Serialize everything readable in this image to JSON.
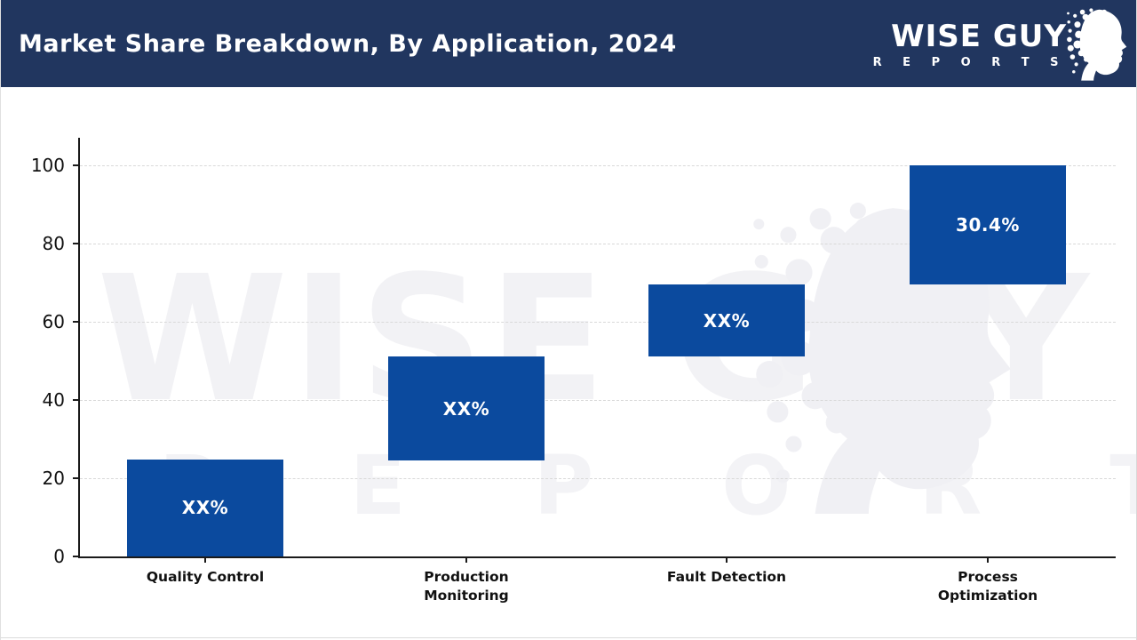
{
  "header": {
    "title": "Market Share Breakdown, By Application, 2024",
    "logo": {
      "line1": "WISE GUY",
      "line2": "R E P O R T S"
    }
  },
  "watermark": {
    "line1": "WISE GUY",
    "line2": "R E P O R T S"
  },
  "chart_data": {
    "type": "bar",
    "variant": "floating-waterfall",
    "title": "Market Share Breakdown, By Application, 2024",
    "categories": [
      "Quality Control",
      "Production\nMonitoring",
      "Fault Detection",
      "Process\nOptimization"
    ],
    "bars": [
      {
        "category": "Quality Control",
        "start": 0,
        "end": 24.8,
        "value_label": "XX%"
      },
      {
        "category": "Production Monitoring",
        "start": 24.5,
        "end": 51.1,
        "value_label": "XX%"
      },
      {
        "category": "Fault Detection",
        "start": 51.1,
        "end": 69.5,
        "value_label": "XX%"
      },
      {
        "category": "Process Optimization",
        "start": 69.5,
        "end": 99.9,
        "value_label": "30.4%"
      }
    ],
    "xlabel": "",
    "ylabel": "",
    "yticks": [
      0,
      20,
      40,
      60,
      80,
      100
    ],
    "ylim": [
      0,
      107
    ],
    "grid": "horizontal-dashed",
    "legend": "none",
    "colors": {
      "bar": "#0b4a9e",
      "bar_label": "#ffffff",
      "axis": "#1a1a1a",
      "grid": "#d9d9d9",
      "tick_text": "#111111",
      "header_bg": "#21365f",
      "header_text": "#ffffff",
      "watermark": "#f2f2f5"
    }
  }
}
